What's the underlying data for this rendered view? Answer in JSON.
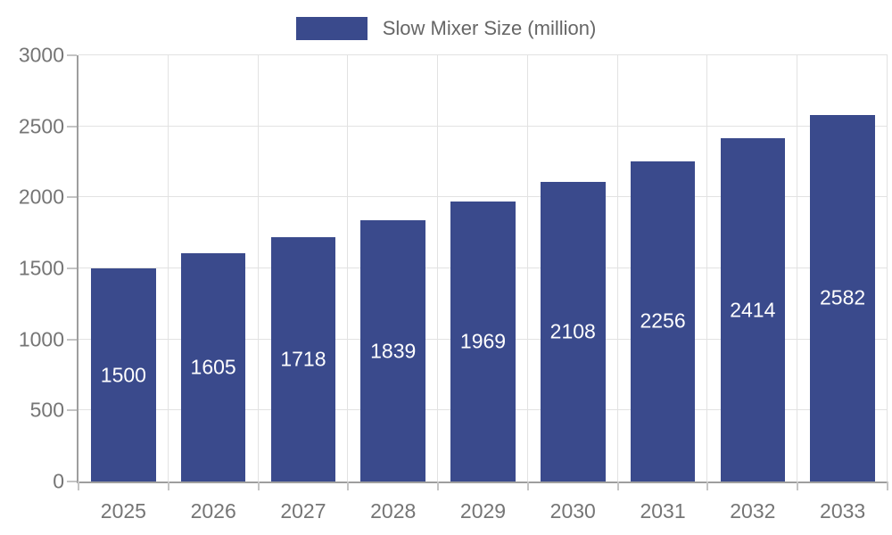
{
  "chart_data": {
    "type": "bar",
    "title": "",
    "legend": "Slow Mixer Size (million)",
    "legend_position": "top",
    "categories": [
      "2025",
      "2026",
      "2027",
      "2028",
      "2029",
      "2030",
      "2031",
      "2032",
      "2033"
    ],
    "values": [
      1500,
      1605,
      1718,
      1839,
      1969,
      2108,
      2256,
      2414,
      2582
    ],
    "xlabel": "",
    "ylabel": "",
    "ylim": [
      0,
      3000
    ],
    "yticks": [
      0,
      500,
      1000,
      1500,
      2000,
      2500,
      3000
    ],
    "grid": true,
    "bar_color": "#3a4a8c",
    "bar_label_color": "#ffffff",
    "axis_text_color": "#757575",
    "legend_text_color": "#666666",
    "gridline_color": "#e2e2e2",
    "axis_line_color": "#9e9e9e"
  }
}
